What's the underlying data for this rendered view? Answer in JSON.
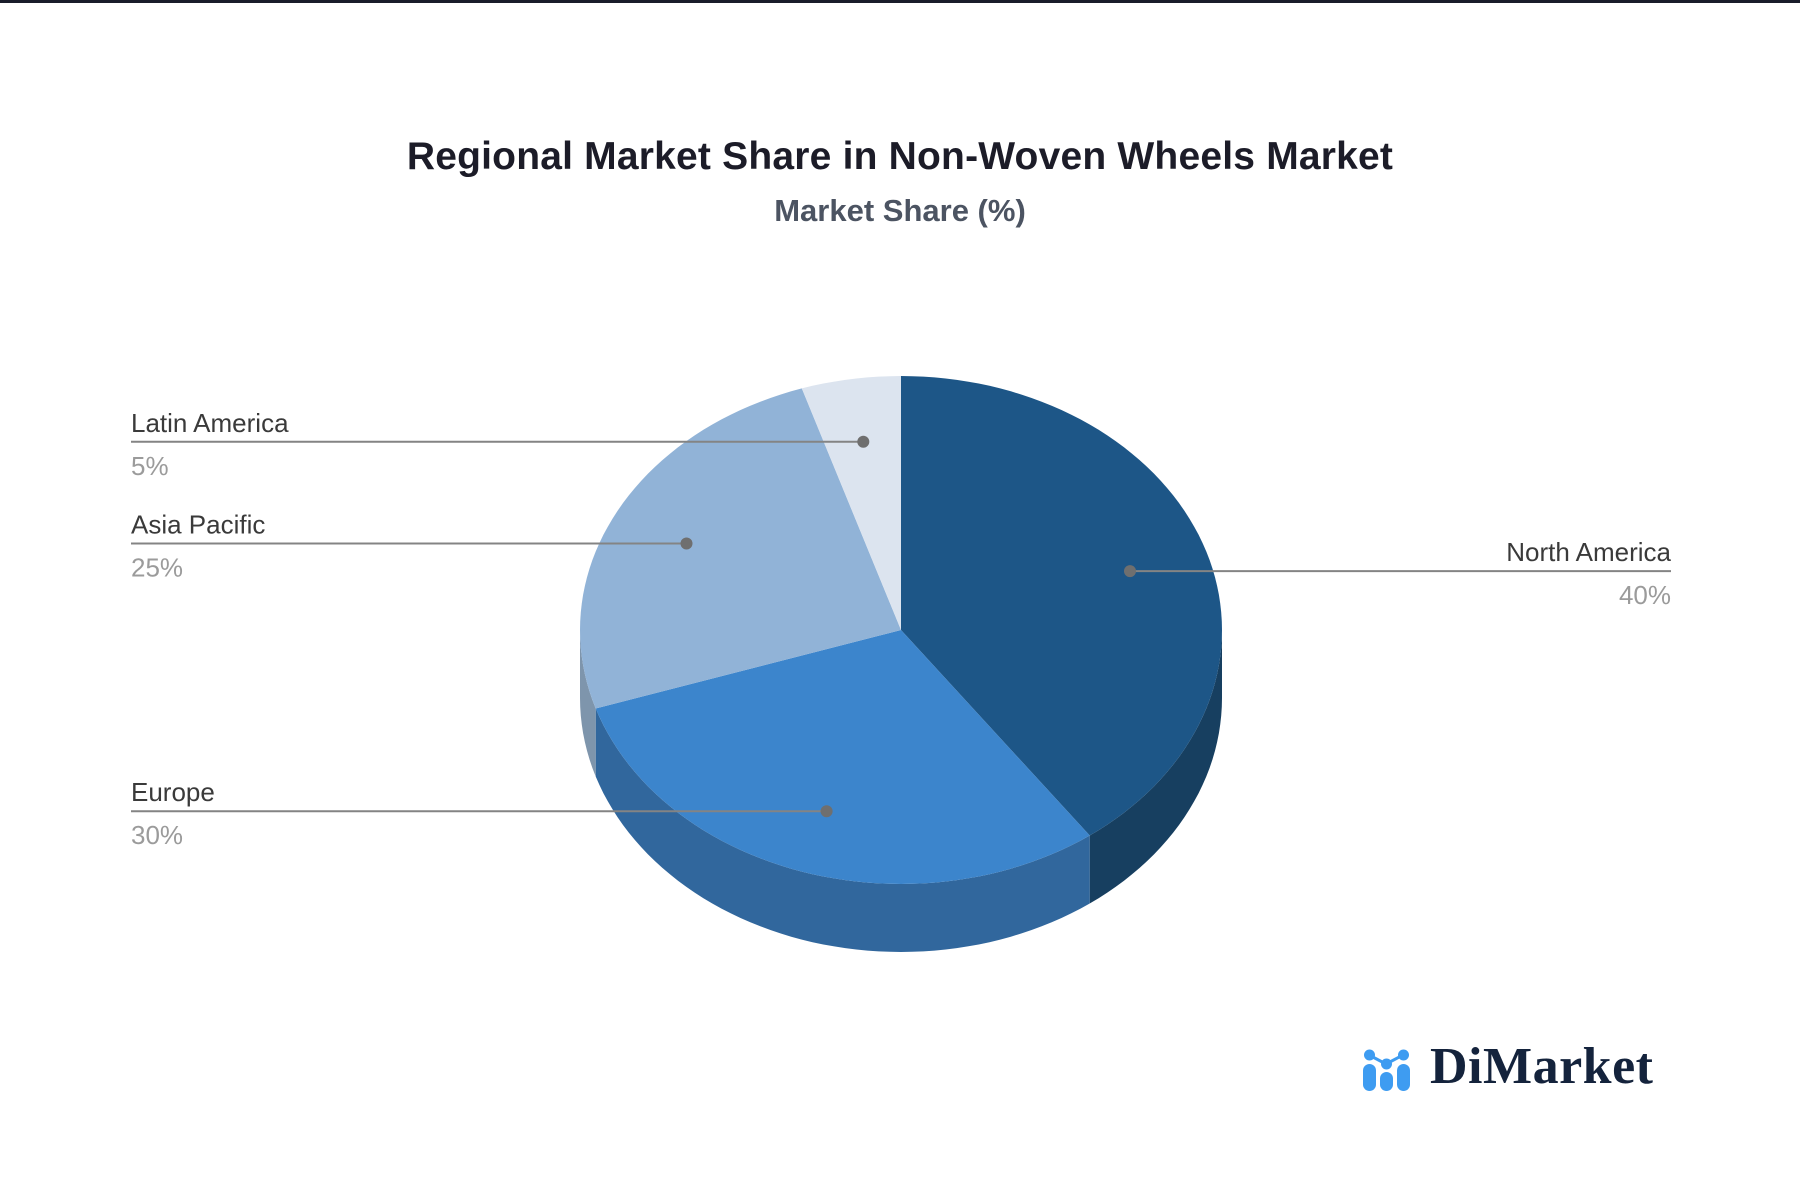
{
  "title": "Regional Market Share in Non-Woven Wheels Market",
  "subtitle": "Market Share (%)",
  "chart_data": {
    "type": "pie",
    "title": "Regional Market Share in Non-Woven Wheels Market",
    "subtitle": "Market Share (%)",
    "unit": "%",
    "style": "3d-pie",
    "direction": "clockwise",
    "start_angle_deg": 0,
    "legend_position": "callout-labels",
    "slices": [
      {
        "label": "North America",
        "value": 40,
        "pct_label": "40%",
        "color": "#1D5687",
        "side_color": "#173F60"
      },
      {
        "label": "Europe",
        "value": 30,
        "pct_label": "30%",
        "color": "#3C85CC",
        "side_color": "#31679D"
      },
      {
        "label": "Asia Pacific",
        "value": 25,
        "pct_label": "25%",
        "color": "#91B3D7",
        "side_color": "#7E95AC"
      },
      {
        "label": "Latin America",
        "value": 5,
        "pct_label": "5%",
        "color": "#DCE4EF",
        "side_color": "#ABBACB"
      }
    ],
    "callout_line_color": "#848484",
    "callout_dot_color": "#6f6f6f",
    "label_color": "#3a3a3a",
    "value_color": "#9b9b9b"
  },
  "branding": {
    "logo_text": "DiMarket",
    "logo_text_color": "#14233c",
    "logo_bar_color": "#3E9CF1"
  }
}
